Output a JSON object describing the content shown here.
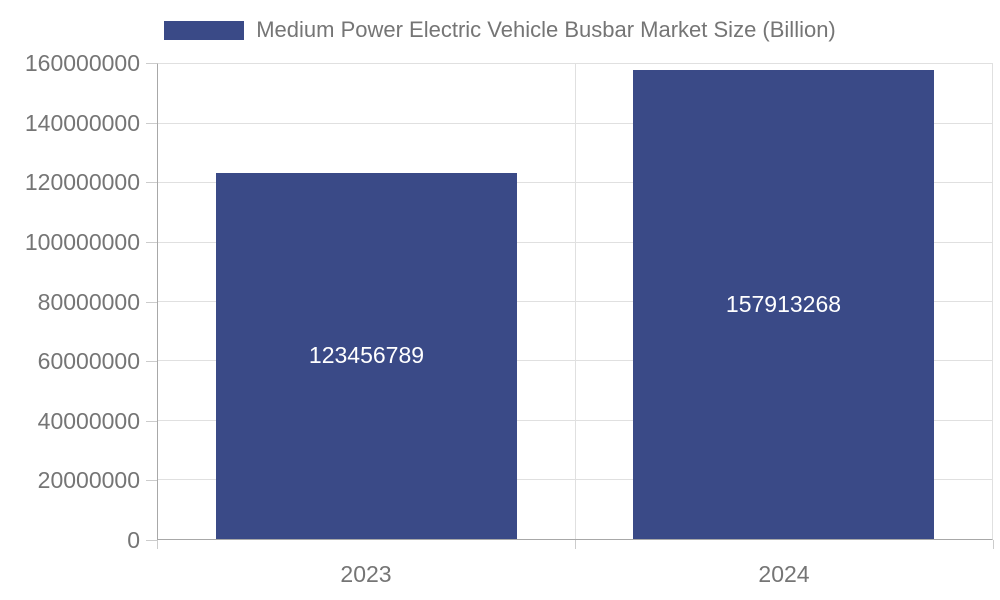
{
  "legend": {
    "item_label": "Medium Power Electric Vehicle Busbar Market Size (Billion)"
  },
  "colors": {
    "bar": "#3A4A87",
    "grid": "#E0E0E0",
    "axis_line": "#A8A8A8",
    "tick": "#CCCCCC",
    "label_text": "#757575",
    "bar_label_text": "#FFFFFF",
    "background": "#FFFFFF"
  },
  "chart_data": {
    "type": "bar",
    "title": "Medium Power Electric Vehicle Busbar Market Size (Billion)",
    "categories": [
      "2023",
      "2024"
    ],
    "values": [
      123456789,
      157913268
    ],
    "bar_value_labels": [
      "123456789",
      "157913268"
    ],
    "xlabel": "",
    "ylabel": "",
    "ylim": [
      0,
      160000000
    ],
    "ytick_step": 20000000,
    "ytick_labels": [
      "0",
      "20000000",
      "40000000",
      "60000000",
      "80000000",
      "100000000",
      "120000000",
      "140000000",
      "160000000"
    ],
    "grid": true,
    "legend_position": "top-center",
    "bar_width_fraction": 0.72
  }
}
